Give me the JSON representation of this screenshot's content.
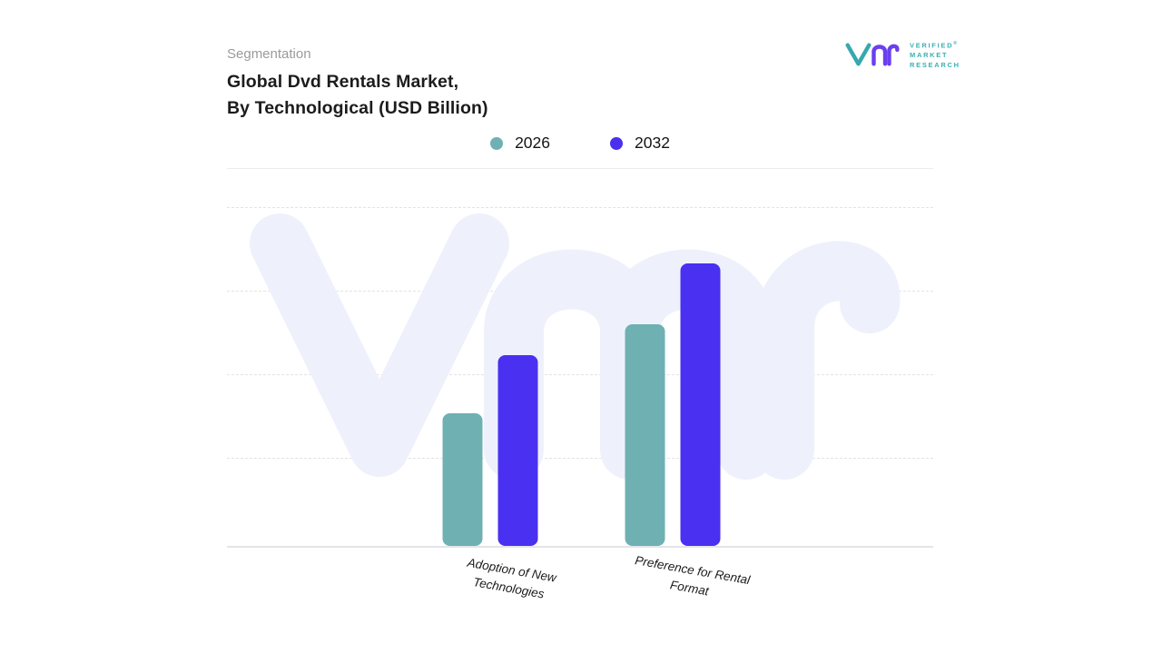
{
  "page": {
    "eyebrow": "Segmentation",
    "title_line1": "Global Dvd Rentals Market,",
    "title_line2": "By Technological (USD Billion)"
  },
  "logo": {
    "line1": "VERIFIED",
    "registered": "®",
    "line2": "MARKET",
    "line3": "RESEARCH"
  },
  "chart_data": {
    "type": "bar",
    "title": "Global Dvd Rentals Market, By Technological (USD Billion)",
    "categories": [
      "Adoption of New Technologies",
      "Preference for Rental Format"
    ],
    "category_lines": [
      [
        "Adoption of New",
        "Technologies"
      ],
      [
        "Preference for Rental",
        "Format"
      ]
    ],
    "series": [
      {
        "name": "2026",
        "color": "#6fb0b3",
        "values": [
          39,
          65
        ]
      },
      {
        "name": "2032",
        "color": "#4a30f0",
        "values": [
          56,
          83
        ]
      }
    ],
    "xlabel": "",
    "ylabel": "USD Billion",
    "ylim": [
      0,
      100
    ],
    "grid": "horizontal-dashed",
    "legend_position": "top-center",
    "watermark": "vmr",
    "colors": {
      "series_2026": "#6fb0b3",
      "series_2032": "#4a30f0",
      "watermark": "#eef1fb",
      "logo_teal": "#3ab0b2",
      "logo_purple": "#6a3ff0"
    }
  }
}
